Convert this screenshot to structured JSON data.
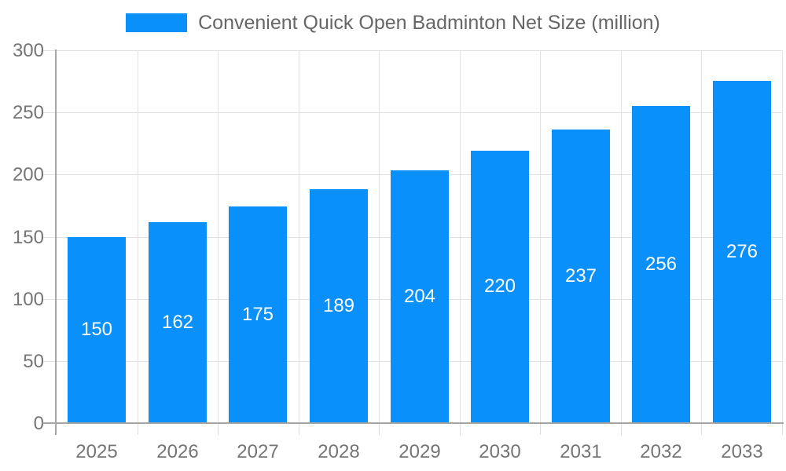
{
  "chart_data": {
    "type": "bar",
    "title": "Convenient Quick Open Badminton Net Size (million)",
    "legend": [
      "Convenient Quick Open Badminton Net Size (million)"
    ],
    "legend_position": "top",
    "categories": [
      "2025",
      "2026",
      "2027",
      "2028",
      "2029",
      "2030",
      "2031",
      "2032",
      "2033"
    ],
    "series": [
      {
        "name": "Convenient Quick Open Badminton Net Size (million)",
        "values": [
          150,
          162,
          175,
          189,
          204,
          220,
          237,
          256,
          276
        ]
      }
    ],
    "xlabel": "",
    "ylabel": "",
    "ylim": [
      0,
      300
    ],
    "yticks": [
      0,
      50,
      100,
      150,
      200,
      250,
      300
    ],
    "grid": true,
    "value_labels": "inside-center",
    "colors": {
      "bar": "#0A90FA",
      "bar_label_text": "#FFFFFF",
      "legend_text": "#666666",
      "axis_text": "#757575",
      "gridline": "#E2E2E2",
      "axis_line": "#A5A5A5",
      "tick_line": "#DCDCDC",
      "background": "#FFFFFF"
    }
  }
}
